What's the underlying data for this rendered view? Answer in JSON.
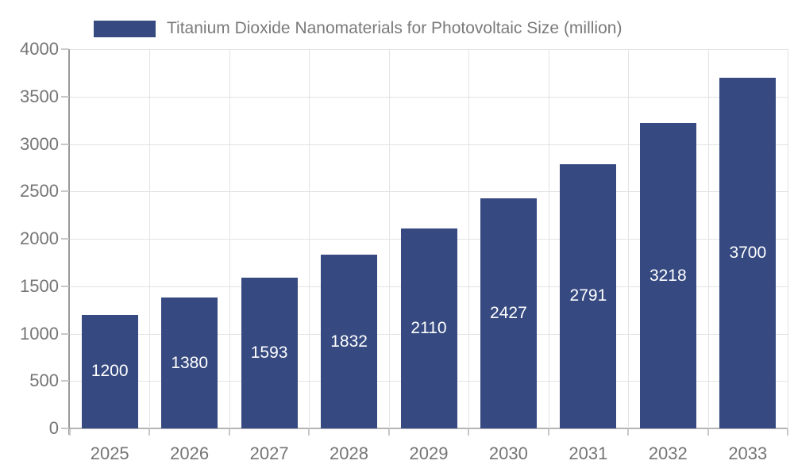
{
  "legend": {
    "label": "Titanium Dioxide Nanomaterials for Photovoltaic Size (million)"
  },
  "chart_data": {
    "type": "bar",
    "title": "Titanium Dioxide Nanomaterials for Photovoltaic Size (million)",
    "categories": [
      "2025",
      "2026",
      "2027",
      "2028",
      "2029",
      "2030",
      "2031",
      "2032",
      "2033"
    ],
    "values": [
      1200,
      1380,
      1593,
      1832,
      2110,
      2427,
      2791,
      3218,
      3700
    ],
    "value_labels": [
      "1200",
      "1380",
      "1593",
      "1832",
      "2110",
      "2427",
      "2791",
      "3218",
      "3700"
    ],
    "xlabel": "",
    "ylabel": "",
    "ylim": [
      0,
      4000
    ],
    "ytick_step": 500,
    "ytick_labels": [
      "0",
      "500",
      "1000",
      "1500",
      "2000",
      "2500",
      "3000",
      "3500",
      "4000"
    ],
    "grid": true,
    "legend_position": "top-left",
    "bar_color": "#364A81",
    "value_label_color": "#ffffff",
    "axis_label_color": "#757575",
    "gridline_color": "#e3e3e3"
  }
}
